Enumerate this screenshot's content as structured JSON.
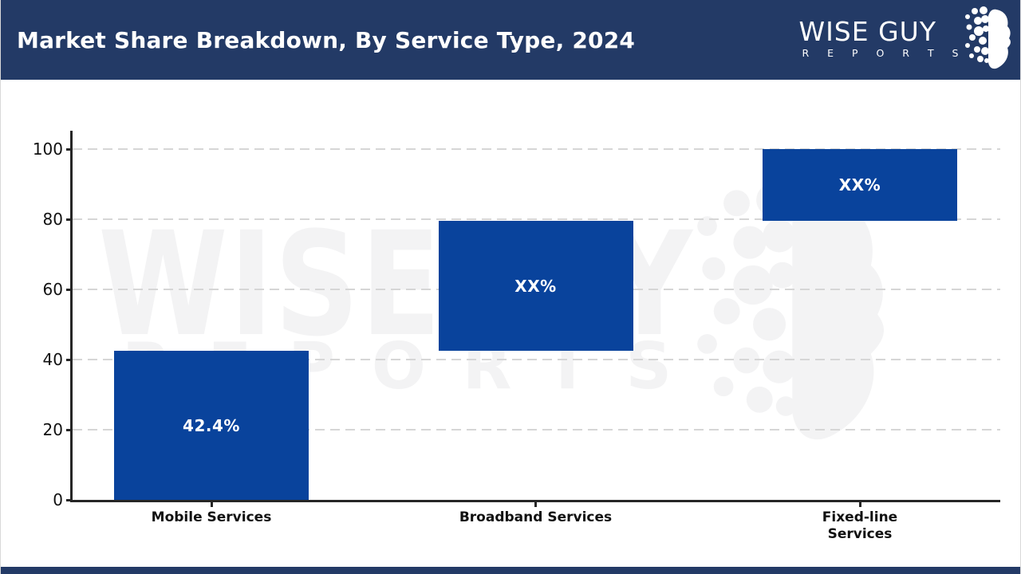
{
  "header": {
    "title": "Market Share Breakdown, By Service Type, 2024",
    "bg_color": "#233a66",
    "logo": {
      "line1": "WISE GUY",
      "line2": "R E P O R T S"
    }
  },
  "watermark": {
    "word1": "WISE",
    "word2": "Y",
    "word3": "REPORTS"
  },
  "chart_data": {
    "type": "bar",
    "subtype": "waterfall",
    "title": "Market Share Breakdown, By Service Type, 2024",
    "categories": [
      "Mobile Services",
      "Broadband Services",
      "Fixed-line\nServices"
    ],
    "bars": [
      {
        "category": "Mobile Services",
        "start": 0,
        "end": 42.4,
        "value": 42.4,
        "label": "42.4%"
      },
      {
        "category": "Broadband Services",
        "start": 42.4,
        "end": 79.5,
        "value": 37.1,
        "label": "XX%"
      },
      {
        "category": "Fixed-line Services",
        "start": 79.5,
        "end": 100,
        "value": 20.5,
        "label": "XX%"
      }
    ],
    "ylim": [
      0,
      100
    ],
    "yticks": [
      0,
      20,
      40,
      60,
      80,
      100
    ],
    "xlabel": "",
    "ylabel": "",
    "grid": "horizontal-dashed",
    "legend": "none",
    "bar_color": "#09439c",
    "grid_color": "#d6d6d6",
    "axis_color": "#262626"
  }
}
